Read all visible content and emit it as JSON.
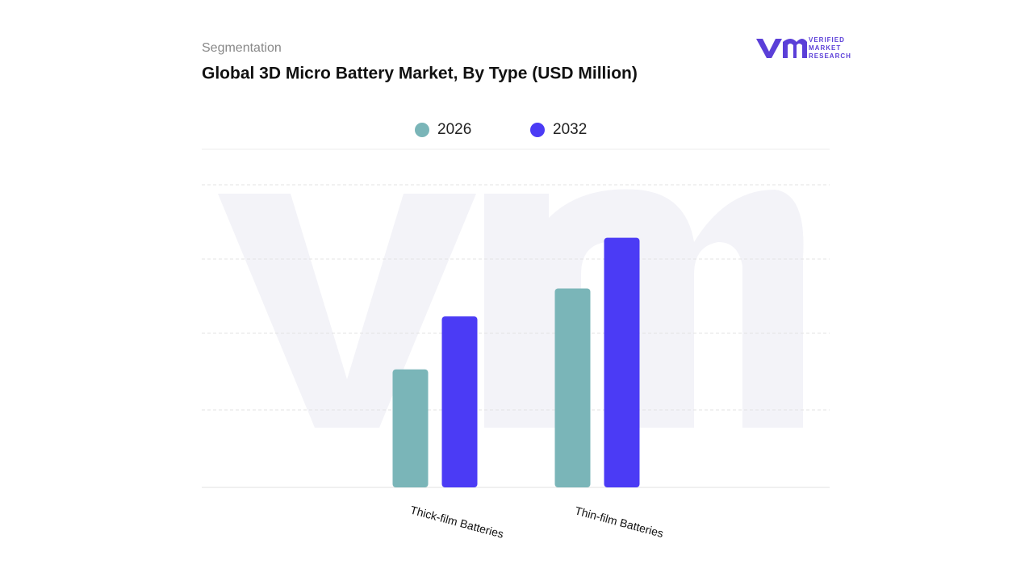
{
  "chart_data": {
    "type": "bar",
    "subtitle": "Segmentation",
    "title": "Global 3D Micro Battery Market, By Type (USD Million)",
    "categories": [
      "Thick-film Batteries",
      "Thin-film Batteries"
    ],
    "series": [
      {
        "name": "2026",
        "color": "#7ab5b8",
        "values": [
          1.56,
          2.63
        ]
      },
      {
        "name": "2032",
        "color": "#4b3bf5",
        "values": [
          2.26,
          3.3
        ]
      }
    ],
    "ylim": [
      0,
      4
    ],
    "logo": {
      "line1": "VERIFIED",
      "line2": "MARKET",
      "line3": "RESEARCH"
    }
  }
}
